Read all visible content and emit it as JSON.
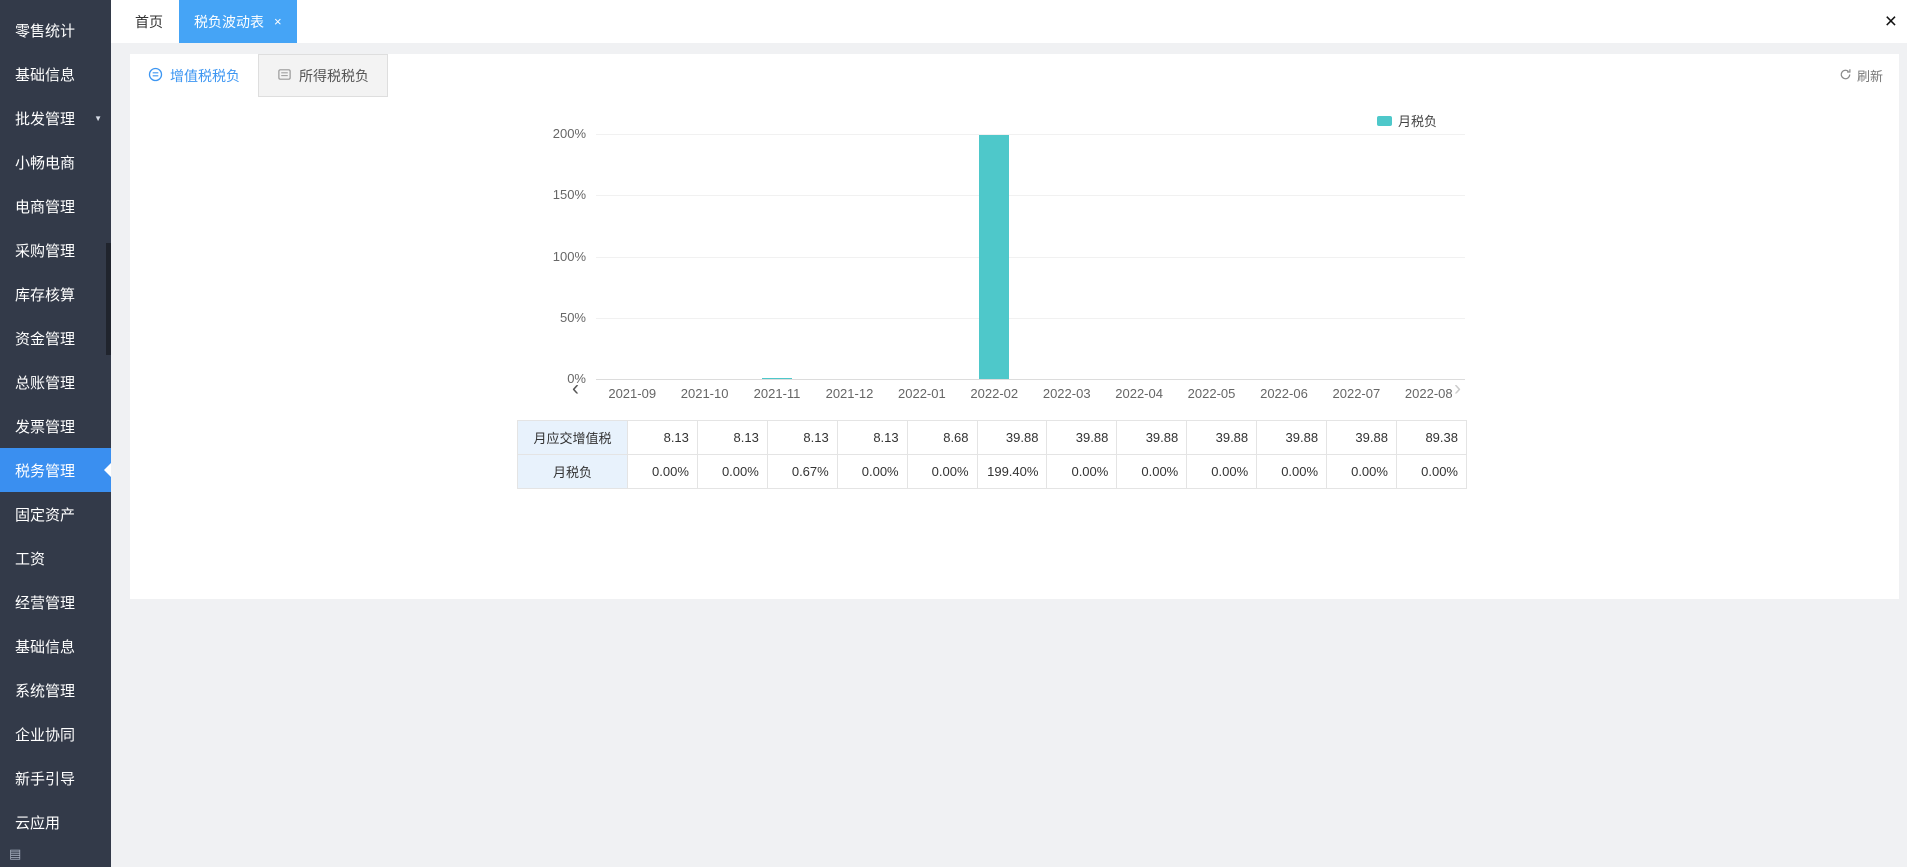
{
  "colors": {
    "sidebar_active": "#3a8ff0",
    "tab_active": "#45a4f6",
    "bar": "#4ec8ca"
  },
  "sidebar": {
    "items": [
      {
        "label": "零售统计"
      },
      {
        "label": "基础信息"
      },
      {
        "label": "批发管理",
        "caret": true
      },
      {
        "label": "小畅电商"
      },
      {
        "label": "电商管理"
      },
      {
        "label": "采购管理"
      },
      {
        "label": "库存核算"
      },
      {
        "label": "资金管理"
      },
      {
        "label": "总账管理"
      },
      {
        "label": "发票管理"
      },
      {
        "label": "税务管理",
        "active": true
      },
      {
        "label": "固定资产"
      },
      {
        "label": "工资"
      },
      {
        "label": "经营管理"
      },
      {
        "label": "基础信息"
      },
      {
        "label": "系统管理"
      },
      {
        "label": "企业协同"
      },
      {
        "label": "新手引导"
      },
      {
        "label": "云应用"
      }
    ]
  },
  "tabbar": {
    "home_tab": "首页",
    "active_tab": "税负波动表",
    "tab_close": "×",
    "window_close": "×"
  },
  "content_tabs": {
    "tabs": [
      {
        "label": "增值税税负",
        "active": true
      },
      {
        "label": "所得税税负",
        "active": false
      }
    ],
    "refresh_label": "刷新"
  },
  "chart_data": {
    "type": "bar",
    "title": "",
    "legend": [
      {
        "name": "月税负",
        "color": "#4ec8ca"
      }
    ],
    "legend_position": "top-right",
    "grid": true,
    "categories": [
      "2021-09",
      "2021-10",
      "2021-11",
      "2021-12",
      "2022-01",
      "2022-02",
      "2022-03",
      "2022-04",
      "2022-05",
      "2022-06",
      "2022-07",
      "2022-08"
    ],
    "series": [
      {
        "name": "月税负",
        "values": [
          0,
          0,
          0.67,
          0,
          0,
          199.4,
          0,
          0,
          0,
          0,
          0,
          0
        ]
      }
    ],
    "ylim": [
      0,
      200
    ],
    "yticks": [
      {
        "value": 0,
        "label": "0%"
      },
      {
        "value": 50,
        "label": "50%"
      },
      {
        "value": 100,
        "label": "100%"
      },
      {
        "value": 150,
        "label": "150%"
      },
      {
        "value": 200,
        "label": "200%"
      }
    ]
  },
  "table": {
    "rows": [
      {
        "header": "月应交增值税",
        "values": [
          "8.13",
          "8.13",
          "8.13",
          "8.13",
          "8.68",
          "39.88",
          "39.88",
          "39.88",
          "39.88",
          "39.88",
          "39.88",
          "89.38"
        ]
      },
      {
        "header": "月税负",
        "values": [
          "0.00%",
          "0.00%",
          "0.67%",
          "0.00%",
          "0.00%",
          "199.40%",
          "0.00%",
          "0.00%",
          "0.00%",
          "0.00%",
          "0.00%",
          "0.00%"
        ]
      }
    ]
  },
  "pagination": {
    "prev": "‹",
    "next": "›"
  }
}
